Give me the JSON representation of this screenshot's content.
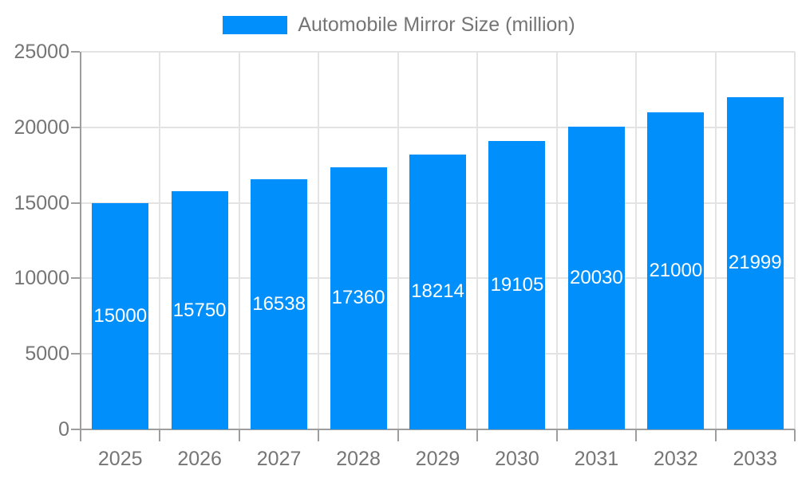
{
  "legend": {
    "label": "Automobile Mirror Size (million)"
  },
  "chart_data": {
    "type": "bar",
    "title": "Automobile Mirror Size (million)",
    "categories": [
      "2025",
      "2026",
      "2027",
      "2028",
      "2029",
      "2030",
      "2031",
      "2032",
      "2033"
    ],
    "values": [
      15000,
      15750,
      16538,
      17360,
      18214,
      19105,
      20030,
      21000,
      21999
    ],
    "xlabel": "",
    "ylabel": "",
    "ylim": [
      0,
      25000
    ],
    "yticks": [
      0,
      5000,
      10000,
      15000,
      20000,
      25000
    ],
    "grid": true,
    "legend_position": "top-center",
    "bar_value_labels": "inside-center"
  },
  "colors": {
    "bar": "#008FFB",
    "bar_label_text": "#ffffff",
    "axis_line": "#9e9e9e",
    "gridline": "#e3e3e3",
    "label_text": "#757575",
    "background": "#ffffff"
  }
}
